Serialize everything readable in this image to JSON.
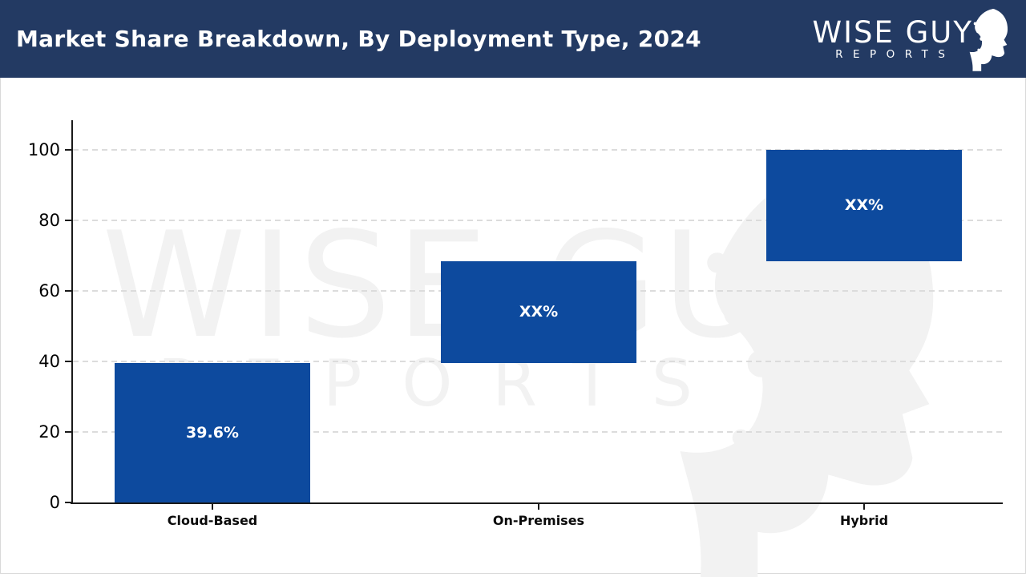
{
  "header": {
    "title": "Market Share Breakdown, By Deployment Type, 2024",
    "logo": {
      "brand_line1": "WISE GUY",
      "brand_line2": "REPORTS"
    }
  },
  "watermark": {
    "line1": "WISE GUY",
    "line2": "REPORTS"
  },
  "colors": {
    "header_bg": "#233a63",
    "bar": "#0d4a9e",
    "grid": "#dcdcdc",
    "watermark": "#f2f2f2",
    "axis": "#1a1a1a",
    "bar_label": "#ffffff",
    "border": "#d9d9d9"
  },
  "chart_data": {
    "type": "bar",
    "subtype": "waterfall",
    "title": "Market Share Breakdown, By Deployment Type, 2024",
    "categories": [
      "Cloud-Based",
      "On-Premises",
      "Hybrid"
    ],
    "segments": [
      {
        "category": "Cloud-Based",
        "start": 0,
        "end": 39.6,
        "label": "39.6%"
      },
      {
        "category": "On-Premises",
        "start": 39.6,
        "end": 68.5,
        "label": "XX%"
      },
      {
        "category": "Hybrid",
        "start": 68.5,
        "end": 100,
        "label": "XX%"
      }
    ],
    "ylim": [
      0,
      100
    ],
    "yticks": [
      0,
      20,
      40,
      60,
      80,
      100
    ],
    "xlabel": "",
    "ylabel": "",
    "grid": "horizontal-dashed",
    "legend": "none"
  }
}
